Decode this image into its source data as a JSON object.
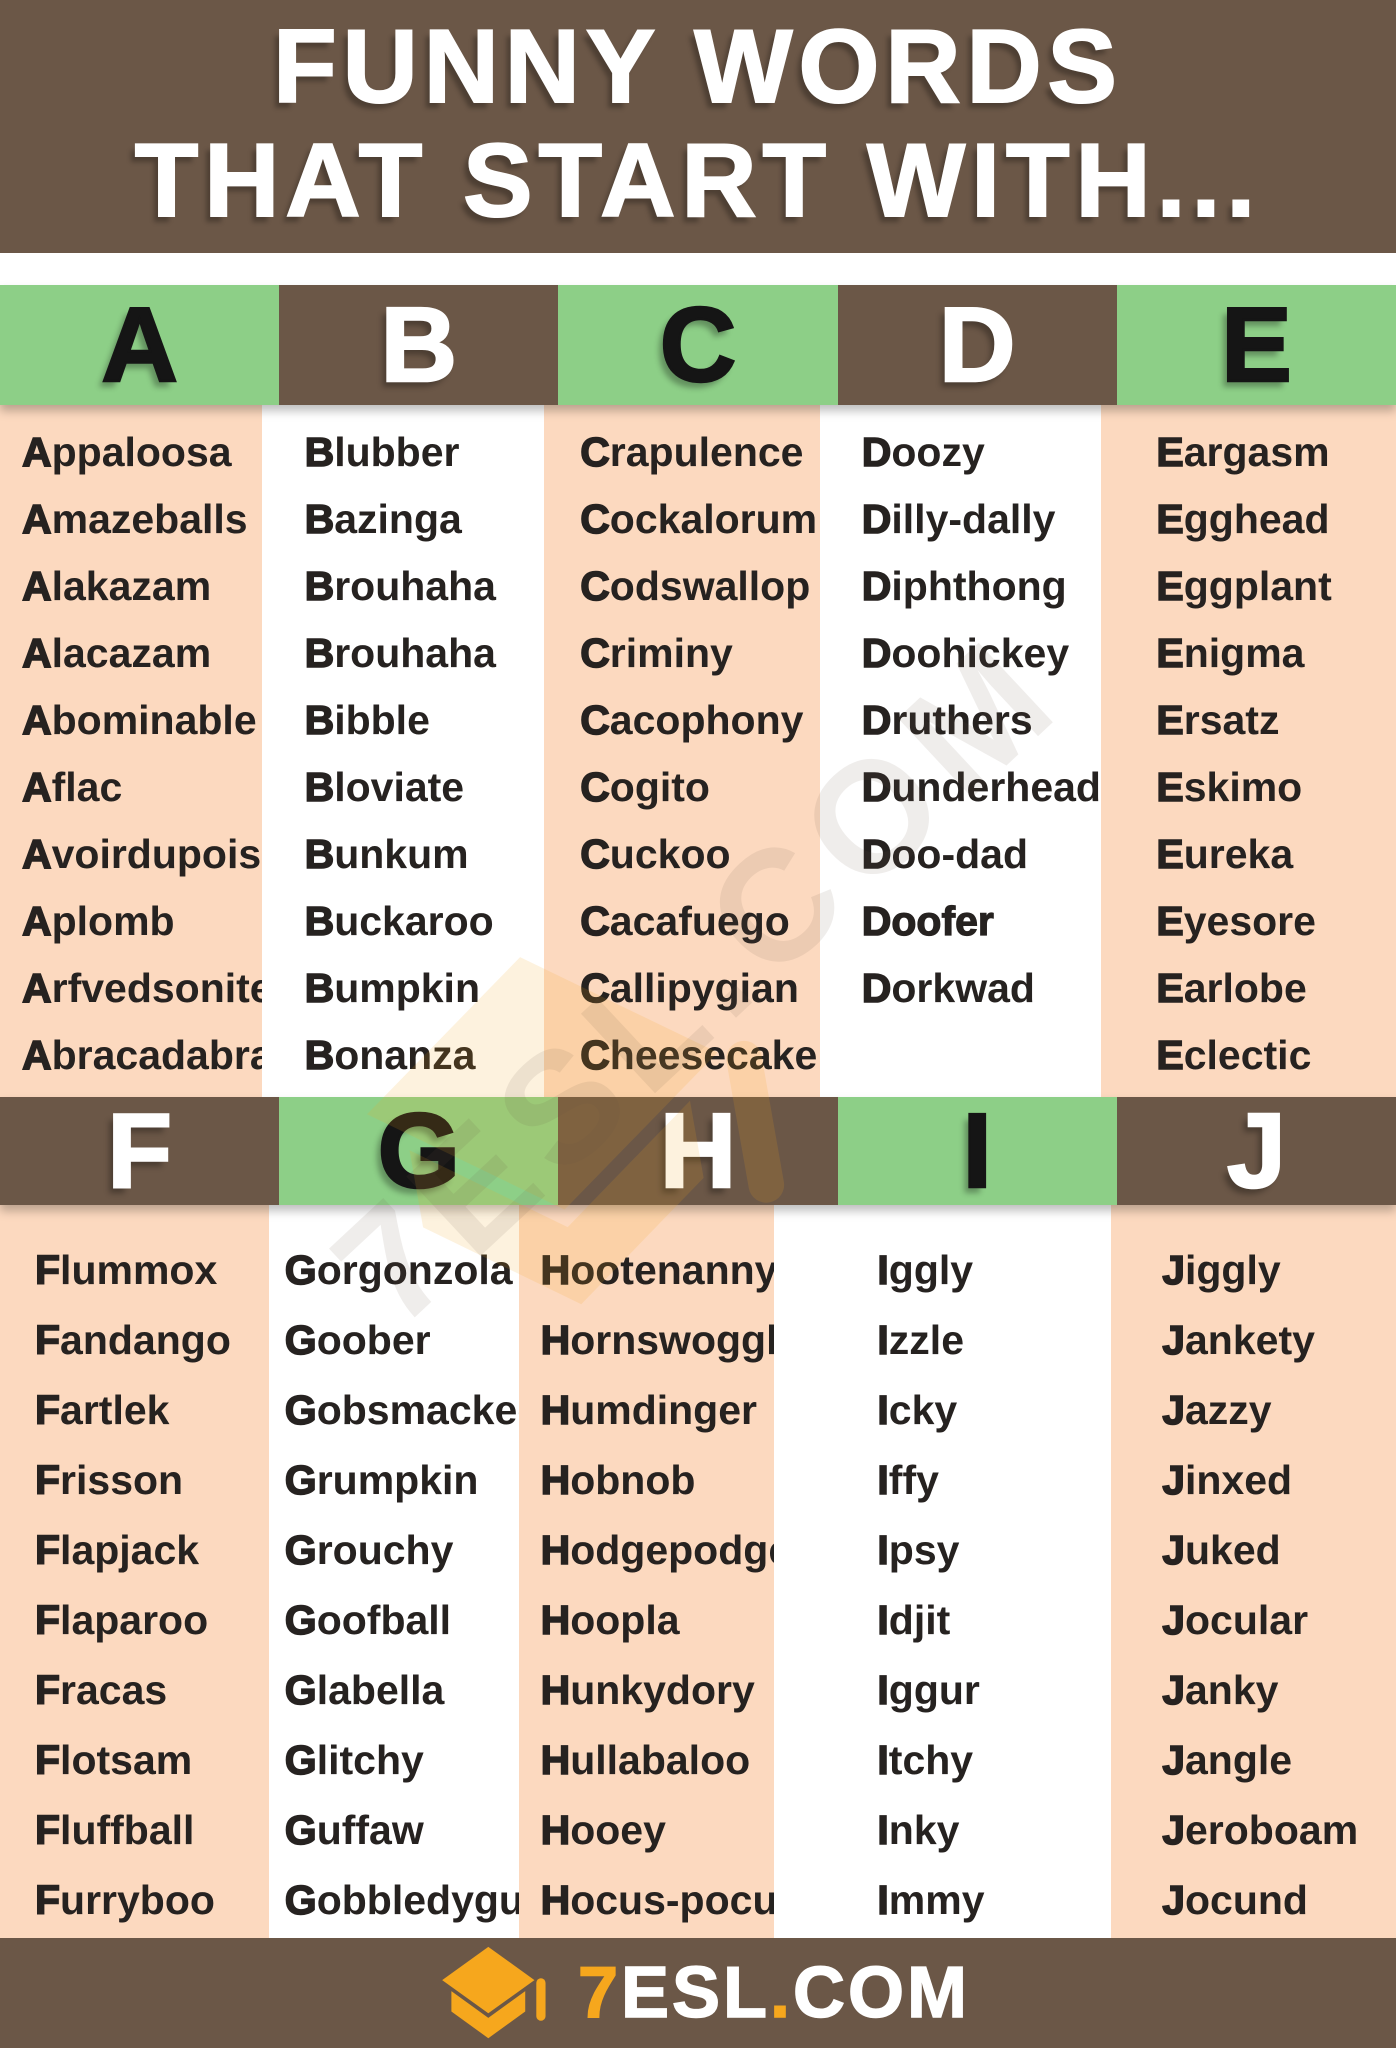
{
  "title": {
    "line1": "FUNNY WORDS",
    "line2": "THAT START WITH..."
  },
  "colors": {
    "header_brown": "#6B5747",
    "green": "#8DCF87",
    "peach": "#FCD9BF",
    "white": "#FFFFFF",
    "accent_yellow": "#F6A71D",
    "text_dark": "#262220"
  },
  "rows": [
    {
      "letters": [
        "A",
        "B",
        "C",
        "D",
        "E"
      ],
      "columns": [
        {
          "letter": "A",
          "words": [
            "Appaloosa",
            "Amazeballs",
            "Alakazam",
            "Alacazam",
            "Abominable",
            "Aflac",
            "Avoirdupois",
            "Aplomb",
            "Arfvedsonite",
            "Abracadabra"
          ]
        },
        {
          "letter": "B",
          "words": [
            "Blubber",
            "Bazinga",
            "Brouhaha",
            "Brouhaha",
            "Bibble",
            "Bloviate",
            "Bunkum",
            "Buckaroo",
            "Bumpkin",
            "Bonanza"
          ]
        },
        {
          "letter": "C",
          "words": [
            "Crapulence",
            "Cockalorum",
            "Codswallop",
            "Criminy",
            "Cacophony",
            "Cogito",
            "Cuckoo",
            "Cacafuego",
            "Callipygian",
            "Cheesecake"
          ]
        },
        {
          "letter": "D",
          "words": [
            "Doozy",
            "Dilly-dally",
            "Diphthong",
            "Doohickey",
            "Druthers",
            "Dunderhead",
            "Doo-dad",
            "Doofer",
            "Dorkwad"
          ]
        },
        {
          "letter": "E",
          "words": [
            "Eargasm",
            "Egghead",
            "Eggplant",
            "Enigma",
            "Ersatz",
            "Eskimo",
            "Eureka",
            "Eyesore",
            "Earlobe",
            "Eclectic"
          ]
        }
      ]
    },
    {
      "letters": [
        "F",
        "G",
        "H",
        "I",
        "J"
      ],
      "columns": [
        {
          "letter": "F",
          "words": [
            "Flummox",
            "Fandango",
            "Fartlek",
            "Frisson",
            "Flapjack",
            "Flaparoo",
            "Fracas",
            "Flotsam",
            "Fluffball",
            "Furryboo"
          ]
        },
        {
          "letter": "G",
          "words": [
            "Gorgonzola",
            "Goober",
            "Gobsmacked",
            "Grumpkin",
            "Grouchy",
            "Goofball",
            "Glabella",
            "Glitchy",
            "Guffaw",
            "Gobbledygum"
          ]
        },
        {
          "letter": "H",
          "words": [
            "Hootenanny",
            "Hornswoggle",
            "Humdinger",
            "Hobnob",
            "Hodgepodge",
            "Hoopla",
            "Hunkydory",
            "Hullabaloo",
            "Hooey",
            "Hocus-pocus"
          ]
        },
        {
          "letter": "I",
          "words": [
            "Iggly",
            "Izzle",
            "Icky",
            "Iffy",
            "Ipsy",
            "Idjit",
            "Iggur",
            "Itchy",
            "Inky",
            "Immy"
          ]
        },
        {
          "letter": "J",
          "words": [
            "Jiggly",
            "Jankety",
            "Jazzy",
            "Jinxed",
            "Juked",
            "Jocular",
            "Janky",
            "Jangle",
            "Jeroboam",
            "Jocund"
          ]
        }
      ]
    }
  ],
  "bold_words": [
    "Doofer"
  ],
  "watermark": {
    "text": "7ESL.COM"
  },
  "footer": {
    "logo": "graduation-cap-icon",
    "brand_7": "7",
    "brand_esl": "ESL",
    "brand_dot": ".",
    "brand_com": "COM"
  }
}
